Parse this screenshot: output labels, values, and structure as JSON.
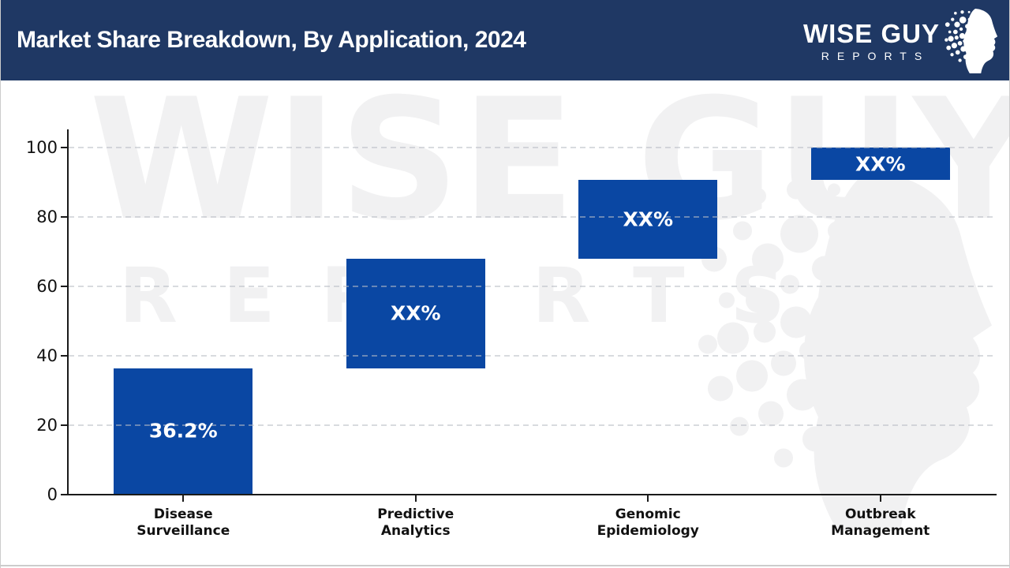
{
  "header": {
    "title": "Market Share Breakdown, By Application, 2024",
    "logo_line1": "WISE GUY",
    "logo_line2": "REPORTS"
  },
  "watermark": {
    "line1": "WISE GUY",
    "line2": "REPORTS"
  },
  "icons": {
    "logo_head": "dotted-face-profile"
  },
  "colors": {
    "header_bg": "#1f3864",
    "bar": "#0a47a3",
    "bar_label": "#ffffff",
    "axis": "#1a1a1a",
    "gridline": "#d9d9d9",
    "watermark": "#f1f1f2",
    "frame_border": "#cccccc"
  },
  "chart_data": {
    "type": "bar",
    "subtype": "waterfall",
    "title": "Market Share Breakdown, By Application, 2024",
    "xlabel": "",
    "ylabel": "",
    "ylim": [
      0,
      105
    ],
    "yticks": [
      0,
      20,
      40,
      60,
      80,
      100
    ],
    "grid": "horizontal-dashed",
    "legend_position": "none",
    "categories": [
      "Disease Surveillance",
      "Predictive Analytics",
      "Genomic Epidemiology",
      "Outbreak Management"
    ],
    "segments": [
      {
        "category": "Disease Surveillance",
        "start": 0,
        "end": 36.2,
        "label": "36.2%"
      },
      {
        "category": "Predictive Analytics",
        "start": 36.2,
        "end": 67.7,
        "label": "XX%"
      },
      {
        "category": "Genomic Epidemiology",
        "start": 67.7,
        "end": 90.5,
        "label": "XX%"
      },
      {
        "category": "Outbreak Management",
        "start": 90.5,
        "end": 99.7,
        "label": "XX%"
      }
    ]
  }
}
